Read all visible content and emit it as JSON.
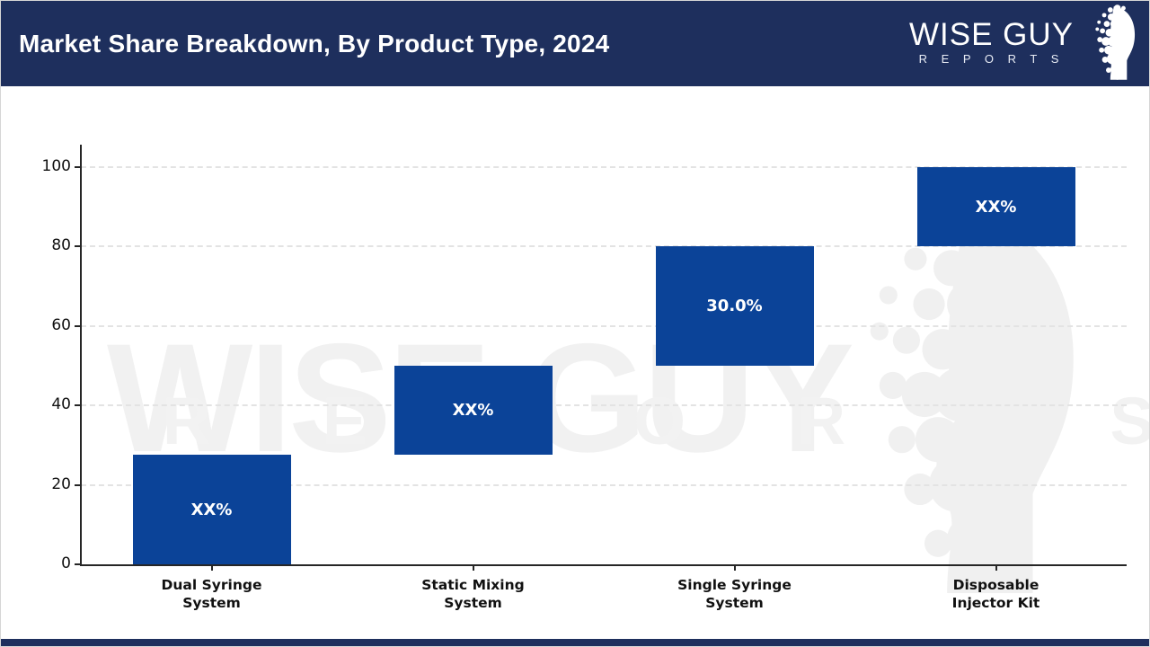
{
  "header": {
    "title": "Market Share Breakdown, By Product Type, 2024",
    "logo": {
      "wordmark": "WISE GUY",
      "subtext": "R E P O R T S"
    }
  },
  "watermark": {
    "wordmark": "WISE GUY",
    "subtext": "R E P O R T S"
  },
  "chart_data": {
    "type": "bar",
    "subtype": "floating-waterfall",
    "title": "Market Share Breakdown, By Product Type, 2024",
    "xlabel": "",
    "ylabel": "",
    "categories": [
      [
        "Dual Syringe",
        "System"
      ],
      [
        "Static Mixing",
        "System"
      ],
      [
        "Single Syringe",
        "System"
      ],
      [
        "Disposable",
        "Injector Kit"
      ]
    ],
    "bars": [
      {
        "category": "Dual Syringe System",
        "start": 0,
        "end": 27.5,
        "value": 27.5,
        "label": "XX%"
      },
      {
        "category": "Static Mixing System",
        "start": 27.5,
        "end": 50,
        "value": 22.5,
        "label": "XX%"
      },
      {
        "category": "Single Syringe System",
        "start": 50,
        "end": 80,
        "value": 30.0,
        "label": "30.0%"
      },
      {
        "category": "Disposable Injector Kit",
        "start": 80,
        "end": 100,
        "value": 20.0,
        "label": "XX%"
      }
    ],
    "yticks": [
      0,
      20,
      40,
      60,
      80,
      100
    ],
    "ylim": [
      0,
      105.7
    ],
    "grid": true,
    "legend": false
  },
  "colors": {
    "header_bg": "#1e2f5d",
    "footer_bg": "#1e2f5d",
    "bar": "#0b4398",
    "grid": "#e3e3e3",
    "axis": "#262626",
    "watermark": "#f1f1f1"
  }
}
